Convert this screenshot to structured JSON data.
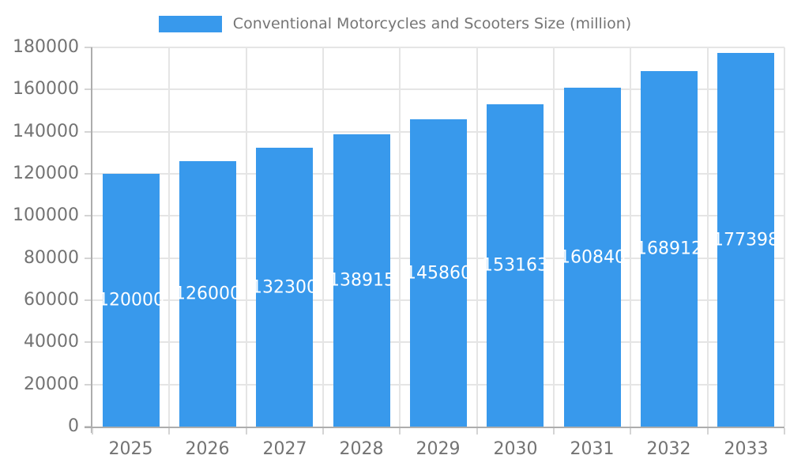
{
  "legend": {
    "label": "Conventional Motorcycles and Scooters Size (million)"
  },
  "colors": {
    "bar": "#3899EC",
    "bar_value_text": "#ffffff",
    "axis_line": "#adadad",
    "gridline": "#e5e5e5",
    "tick_mark": "#d4d4d4",
    "axis_text": "#737373",
    "legend_text": "#757575",
    "background": "#ffffff"
  },
  "chart_data": {
    "type": "bar",
    "title": "Conventional Motorcycles and Scooters Size (million)",
    "categories": [
      "2025",
      "2026",
      "2027",
      "2028",
      "2029",
      "2030",
      "2031",
      "2032",
      "2033"
    ],
    "series": [
      {
        "name": "Conventional Motorcycles and Scooters Size (million)",
        "values": [
          120000,
          126000,
          132300,
          138915,
          145860,
          153163,
          160840,
          168912,
          177398
        ]
      }
    ],
    "bar_value_labels": [
      "120000",
      "126000",
      "132300",
      "138915",
      "145860",
      "153163",
      "160840",
      "168912",
      "177398"
    ],
    "xlabel": "",
    "ylabel": "",
    "ylim": [
      0,
      180000
    ],
    "ytick_step": 20000,
    "ytick_labels": [
      "0",
      "20000",
      "40000",
      "60000",
      "80000",
      "100000",
      "120000",
      "140000",
      "160000",
      "180000"
    ],
    "grid": true,
    "legend_position": "top-center"
  }
}
